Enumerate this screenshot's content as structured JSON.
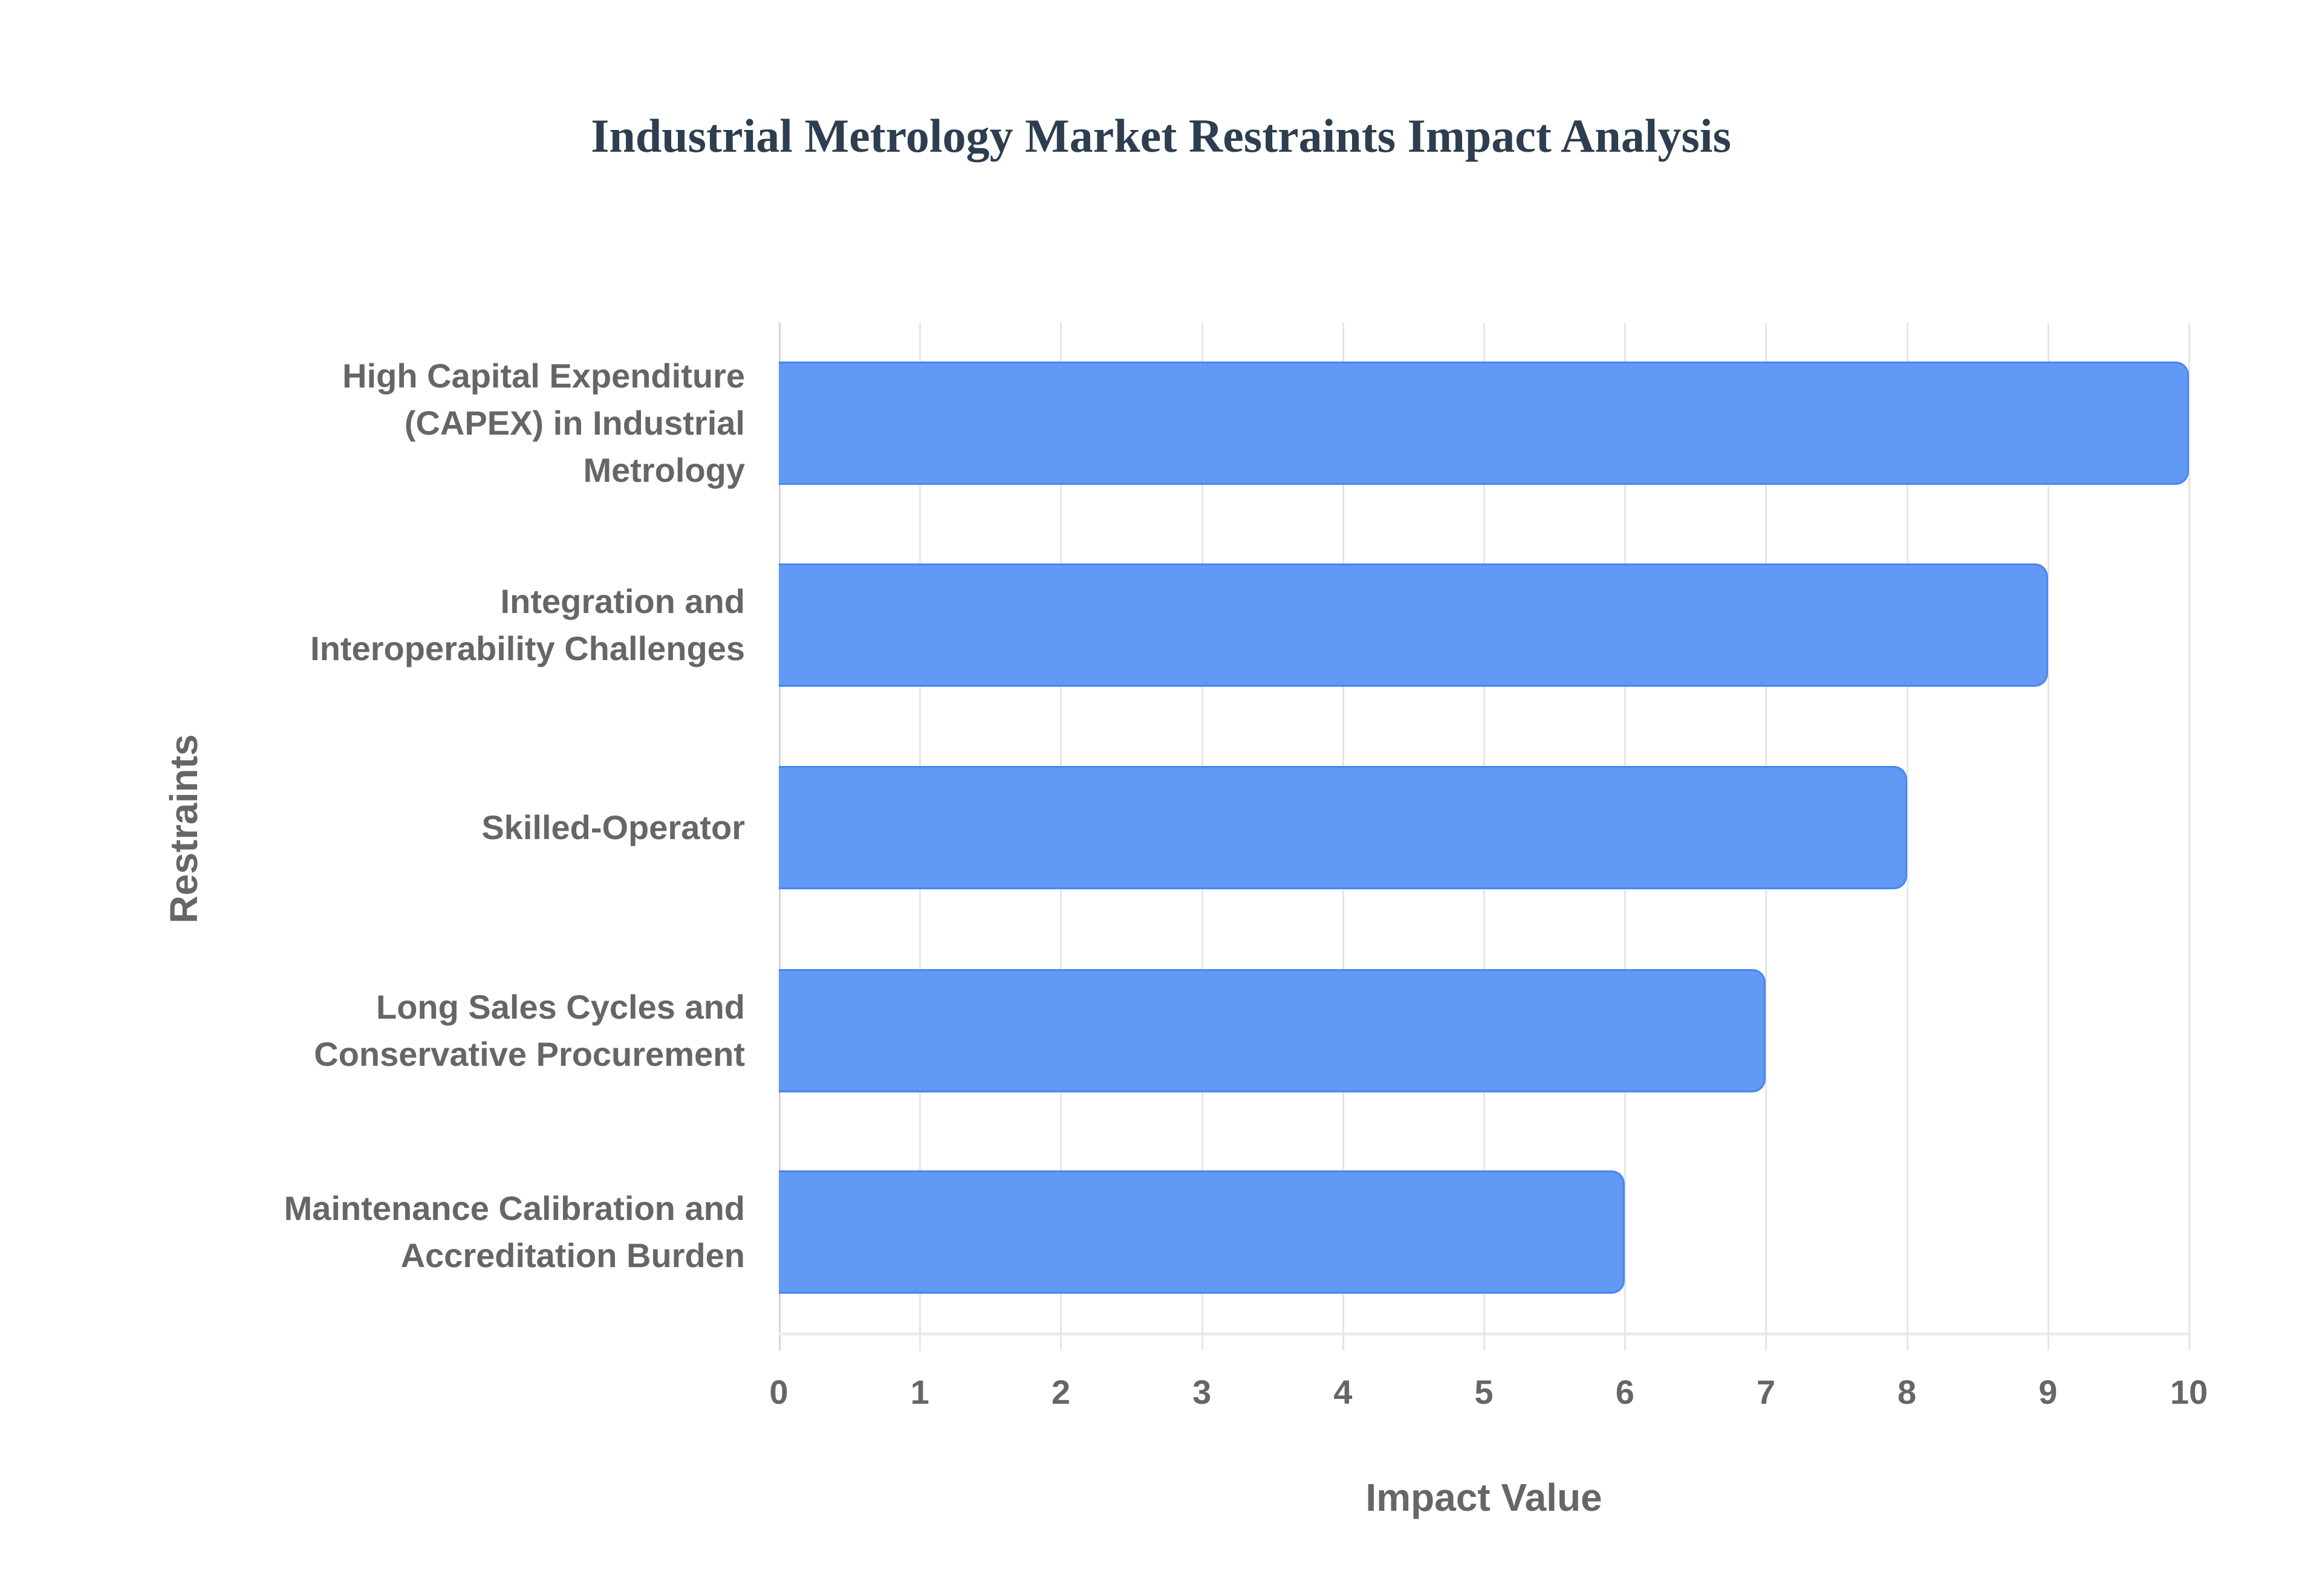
{
  "title": "Industrial Metrology Market Restraints Impact Analysis",
  "colors": {
    "bar_fill": "#6199f4",
    "bar_border": "#4a86ef",
    "title": "#2c3e50",
    "text": "#666666"
  },
  "axes": {
    "x_title": "Impact Value",
    "y_title": "Restraints",
    "x_ticks": [
      "0",
      "1",
      "2",
      "3",
      "4",
      "5",
      "6",
      "7",
      "8",
      "9",
      "10"
    ]
  },
  "categories": [
    "High Capital Expenditure\n(CAPEX) in Industrial\nMetrology",
    "Integration and\nInteroperability Challenges",
    "Skilled-Operator",
    "Long Sales Cycles and\nConservative Procurement",
    "Maintenance Calibration and\nAccreditation Burden"
  ],
  "chart_data": {
    "type": "bar",
    "orientation": "horizontal",
    "title": "Industrial Metrology Market Restraints Impact Analysis",
    "categories": [
      "High Capital Expenditure (CAPEX) in Industrial Metrology",
      "Integration and Interoperability Challenges",
      "Skilled-Operator",
      "Long Sales Cycles and Conservative Procurement",
      "Maintenance Calibration and Accreditation Burden"
    ],
    "values": [
      10,
      9,
      8,
      7,
      6
    ],
    "xlabel": "Impact Value",
    "ylabel": "Restraints",
    "xlim": [
      0,
      10
    ],
    "x_ticks": [
      0,
      1,
      2,
      3,
      4,
      5,
      6,
      7,
      8,
      9,
      10
    ],
    "grid": "vertical",
    "legend": "none"
  }
}
